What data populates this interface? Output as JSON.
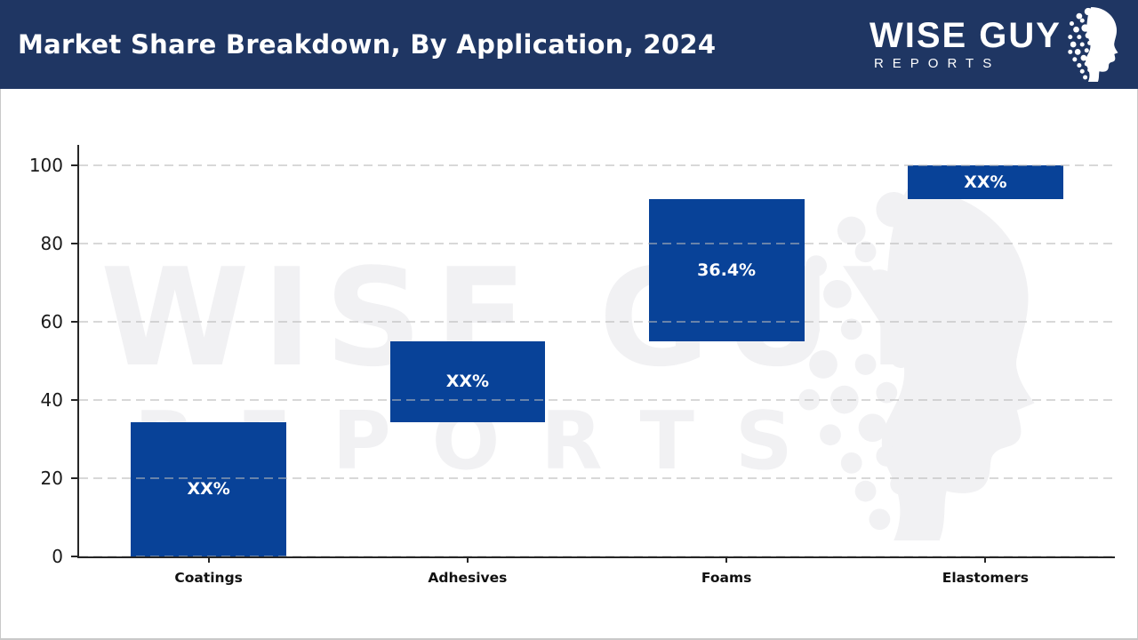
{
  "page": {
    "background": "#ffffff",
    "border_color": "#c9c9c9"
  },
  "header": {
    "background_color": "#1f3663",
    "title": "Market Share Breakdown, By Application, 2024",
    "logo": {
      "top_text": "WISE GUY",
      "bottom_text": "REPORTS"
    }
  },
  "watermark": {
    "top_text": "WISE GUY",
    "bottom_text": "REPORTS",
    "color": "#f1f1f3"
  },
  "chart_data": {
    "type": "bar",
    "variant": "waterfall-floating-bars",
    "title": "Market Share Breakdown, By Application, 2024",
    "categories": [
      "Coatings",
      "Adhesives",
      "Foams",
      "Elastomers"
    ],
    "segments": [
      {
        "category": "Coatings",
        "start": 0,
        "end": 34.4,
        "value_label": "XX%"
      },
      {
        "category": "Adhesives",
        "start": 34.4,
        "end": 55.0,
        "value_label": "XX%"
      },
      {
        "category": "Foams",
        "start": 55.0,
        "end": 91.4,
        "value_label": "36.4%"
      },
      {
        "category": "Elastomers",
        "start": 91.4,
        "end": 100.0,
        "value_label": "XX%"
      }
    ],
    "yticks": [
      0,
      20,
      40,
      60,
      80,
      100
    ],
    "ylim": [
      0,
      105
    ],
    "xlabel": "",
    "ylabel": "",
    "bar_color": "#084298",
    "bar_label_color": "#ffffff",
    "grid": true,
    "grid_style": "dashed",
    "grid_color": "rgba(185,185,185,0.55)",
    "axis_color": "#262626",
    "tick_label_color": "#1a1a1a",
    "legend": false
  }
}
